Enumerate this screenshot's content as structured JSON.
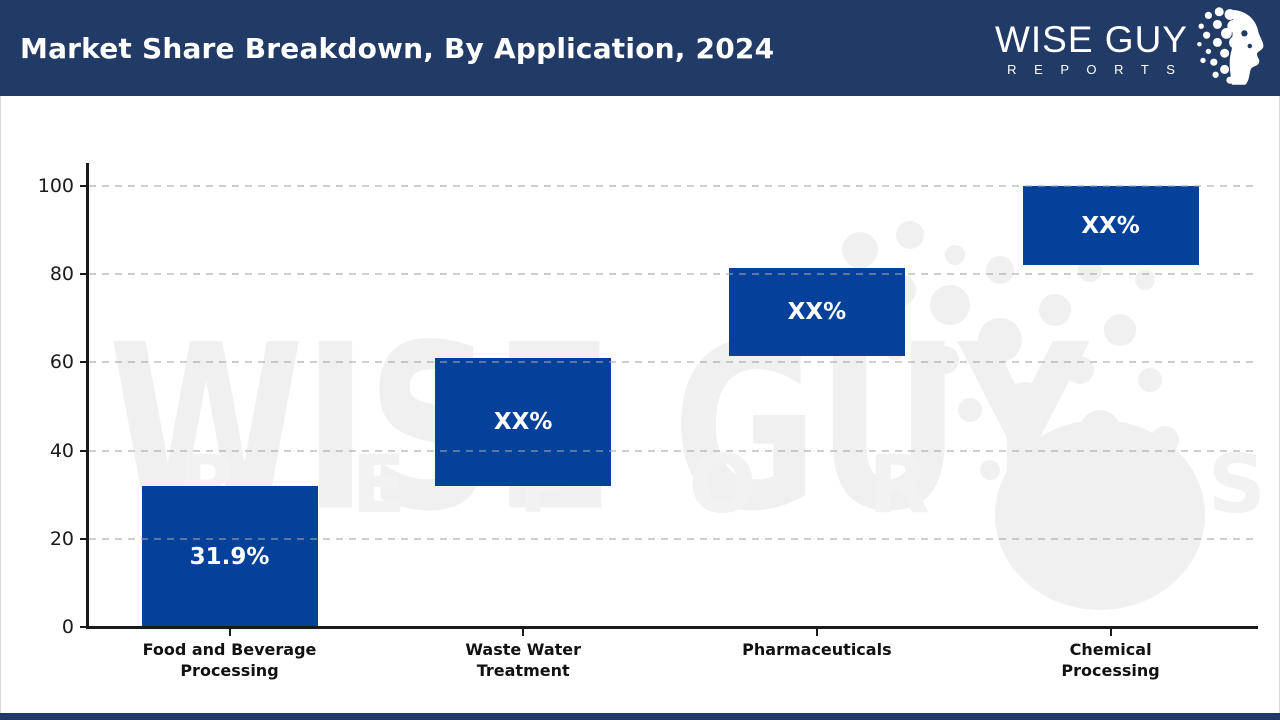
{
  "header": {
    "title": "Market Share Breakdown, By Application, 2024",
    "logo": {
      "wordmark": "WISE GUY",
      "tagline": "R E P O R T S"
    }
  },
  "watermark": {
    "wordmark": "WISE GUY",
    "tagline": "R E P O R T S"
  },
  "chart_data": {
    "type": "bar",
    "subtype": "floating-segment-bars",
    "title": "Market Share Breakdown, By Application, 2024",
    "categories": [
      "Food and Beverage\nProcessing",
      "Waste Water\nTreatment",
      "Pharmaceuticals",
      "Chemical\nProcessing"
    ],
    "segments": [
      {
        "category": "Food and Beverage Processing",
        "from": 0,
        "to": 31.9,
        "label": "31.9%"
      },
      {
        "category": "Waste Water Treatment",
        "from": 32,
        "to": 61,
        "label": "XX%"
      },
      {
        "category": "Pharmaceuticals",
        "from": 61.5,
        "to": 81.5,
        "label": "XX%"
      },
      {
        "category": "Chemical Processing",
        "from": 82,
        "to": 100,
        "label": "XX%"
      }
    ],
    "ylim": [
      0,
      100
    ],
    "yticks": [
      0,
      20,
      40,
      60,
      80,
      100
    ],
    "grid": "dashed-horizontal",
    "legend": "none",
    "xlabel": "",
    "ylabel": ""
  },
  "colors": {
    "header_bg": "#213A66",
    "footer_bg": "#213A66",
    "bar": "#05419B",
    "bar_label": "#FFFFFF",
    "axis": "#1A1A1A",
    "gridline": "#D8D8D8",
    "watermark": "#F0F0F0",
    "title_text": "#FFFFFF"
  }
}
